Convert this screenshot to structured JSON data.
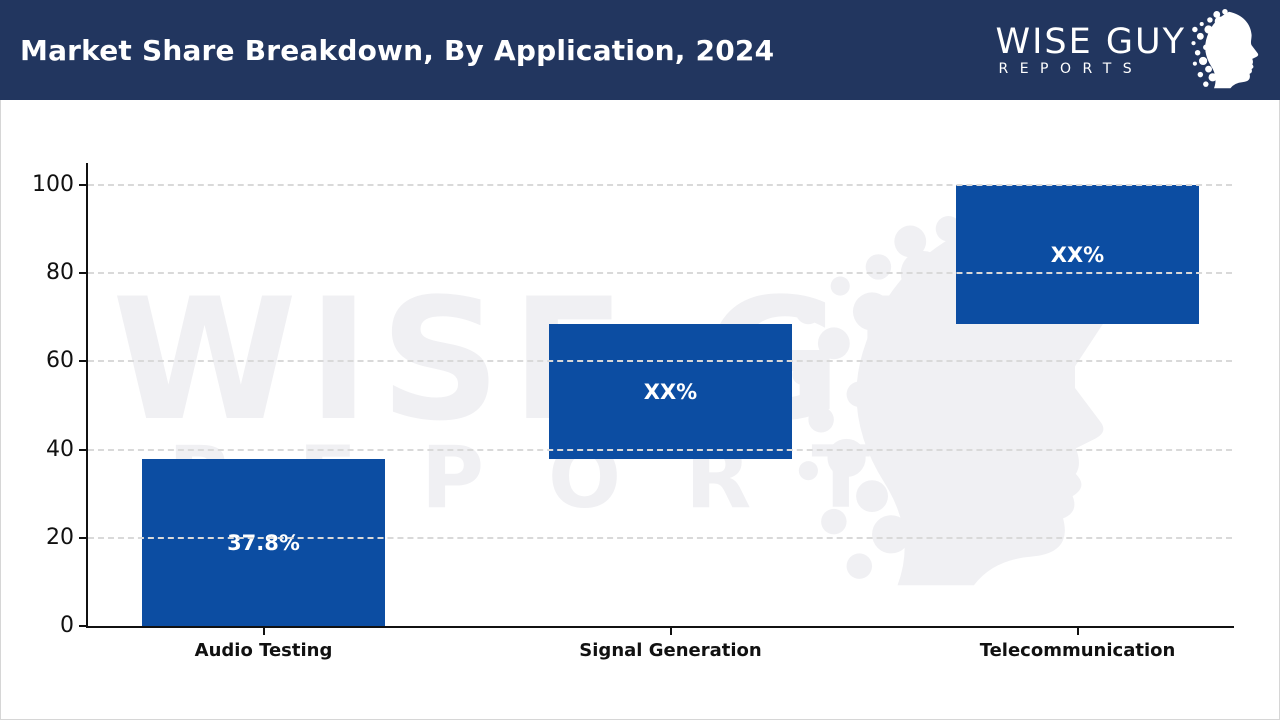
{
  "header": {
    "title": "Market Share Breakdown, By Application, 2024",
    "logo": {
      "wordmark": "WISE GUY",
      "subtext": "REPORTS"
    }
  },
  "watermark": {
    "wordmark": "WISE GUY",
    "subtext": "REPORTS"
  },
  "colors": {
    "header_bg": "#22365f",
    "bar": "#0c4da2",
    "bar_label": "#ffffff",
    "gridline": "#d9d9d9",
    "axis": "#111111",
    "watermark": "#f0f0f3"
  },
  "chart_data": {
    "type": "bar",
    "subtype": "stacked-waterfall",
    "title": "Market Share Breakdown, By Application, 2024",
    "categories": [
      "Audio Testing",
      "Signal Generation",
      "Telecommunication"
    ],
    "bars": [
      {
        "category": "Audio Testing",
        "from": 0,
        "to": 37.8,
        "label": "37.8%"
      },
      {
        "category": "Signal Generation",
        "from": 37.8,
        "to": 68.4,
        "label": "XX%"
      },
      {
        "category": "Telecommunication",
        "from": 68.4,
        "to": 100,
        "label": "XX%"
      }
    ],
    "xlabel": "",
    "ylabel": "",
    "yticks": [
      0,
      20,
      40,
      60,
      80,
      100
    ],
    "ylim": [
      0,
      105
    ],
    "grid": "horizontal-dashed",
    "legend": "none"
  }
}
